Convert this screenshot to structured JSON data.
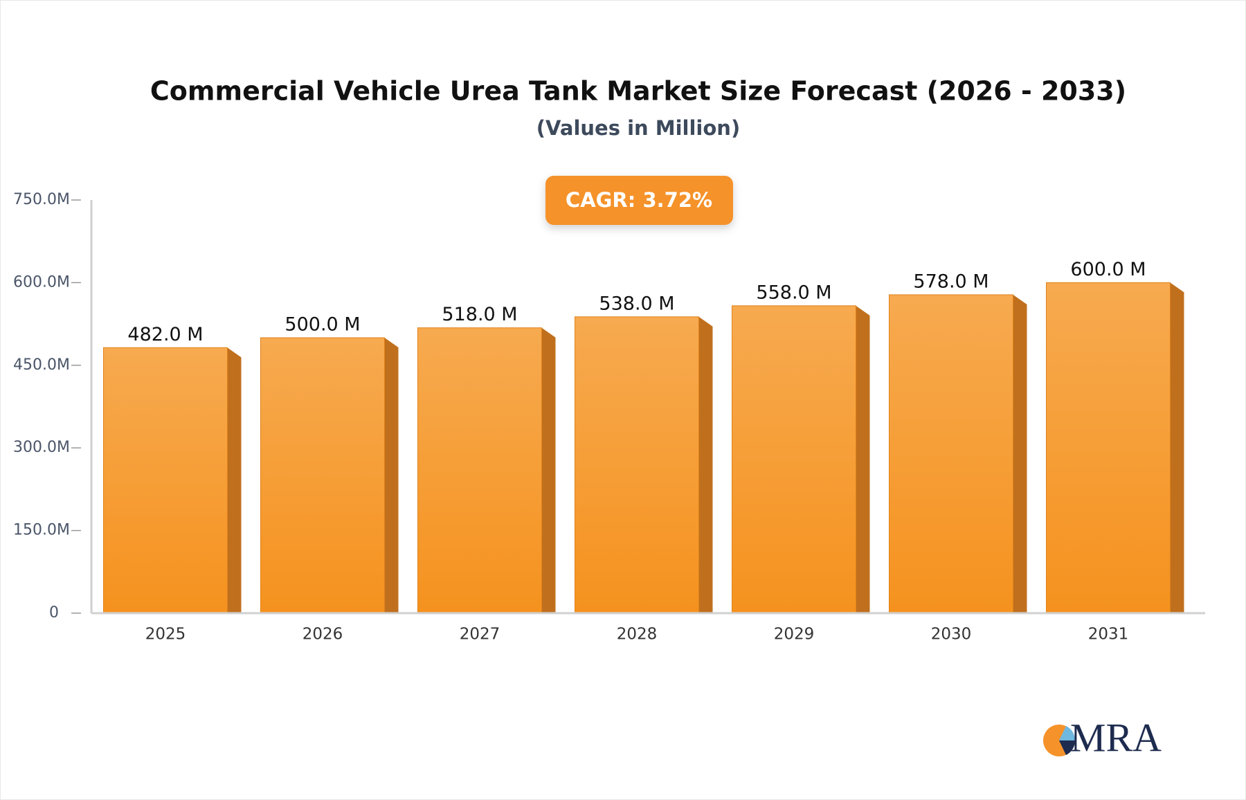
{
  "chart_data": {
    "type": "bar",
    "title": "Commercial Vehicle Urea Tank Market Size Forecast (2026 - 2033)",
    "subtitle": "(Values in Million)",
    "annotation": "CAGR: 3.72%",
    "logo": "MRA",
    "categories": [
      "2025",
      "2026",
      "2027",
      "2028",
      "2029",
      "2030",
      "2031"
    ],
    "values": [
      482,
      500,
      518,
      538,
      558,
      578,
      600
    ],
    "value_labels": [
      "482.0 M",
      "500.0 M",
      "518.0 M",
      "538.0 M",
      "558.0 M",
      "578.0 M",
      "600.0 M"
    ],
    "color": "#f5962a",
    "ylim": [
      0,
      750
    ],
    "yticks": [
      0,
      {
        "value": 150,
        "label": "150.0M"
      },
      {
        "value": 300,
        "label": "300.0M"
      },
      {
        "value": 450,
        "label": "450.0M"
      },
      {
        "value": 600,
        "label": "600.0M"
      },
      {
        "value": 750,
        "label": "750.0M"
      }
    ],
    "grid": false
  }
}
